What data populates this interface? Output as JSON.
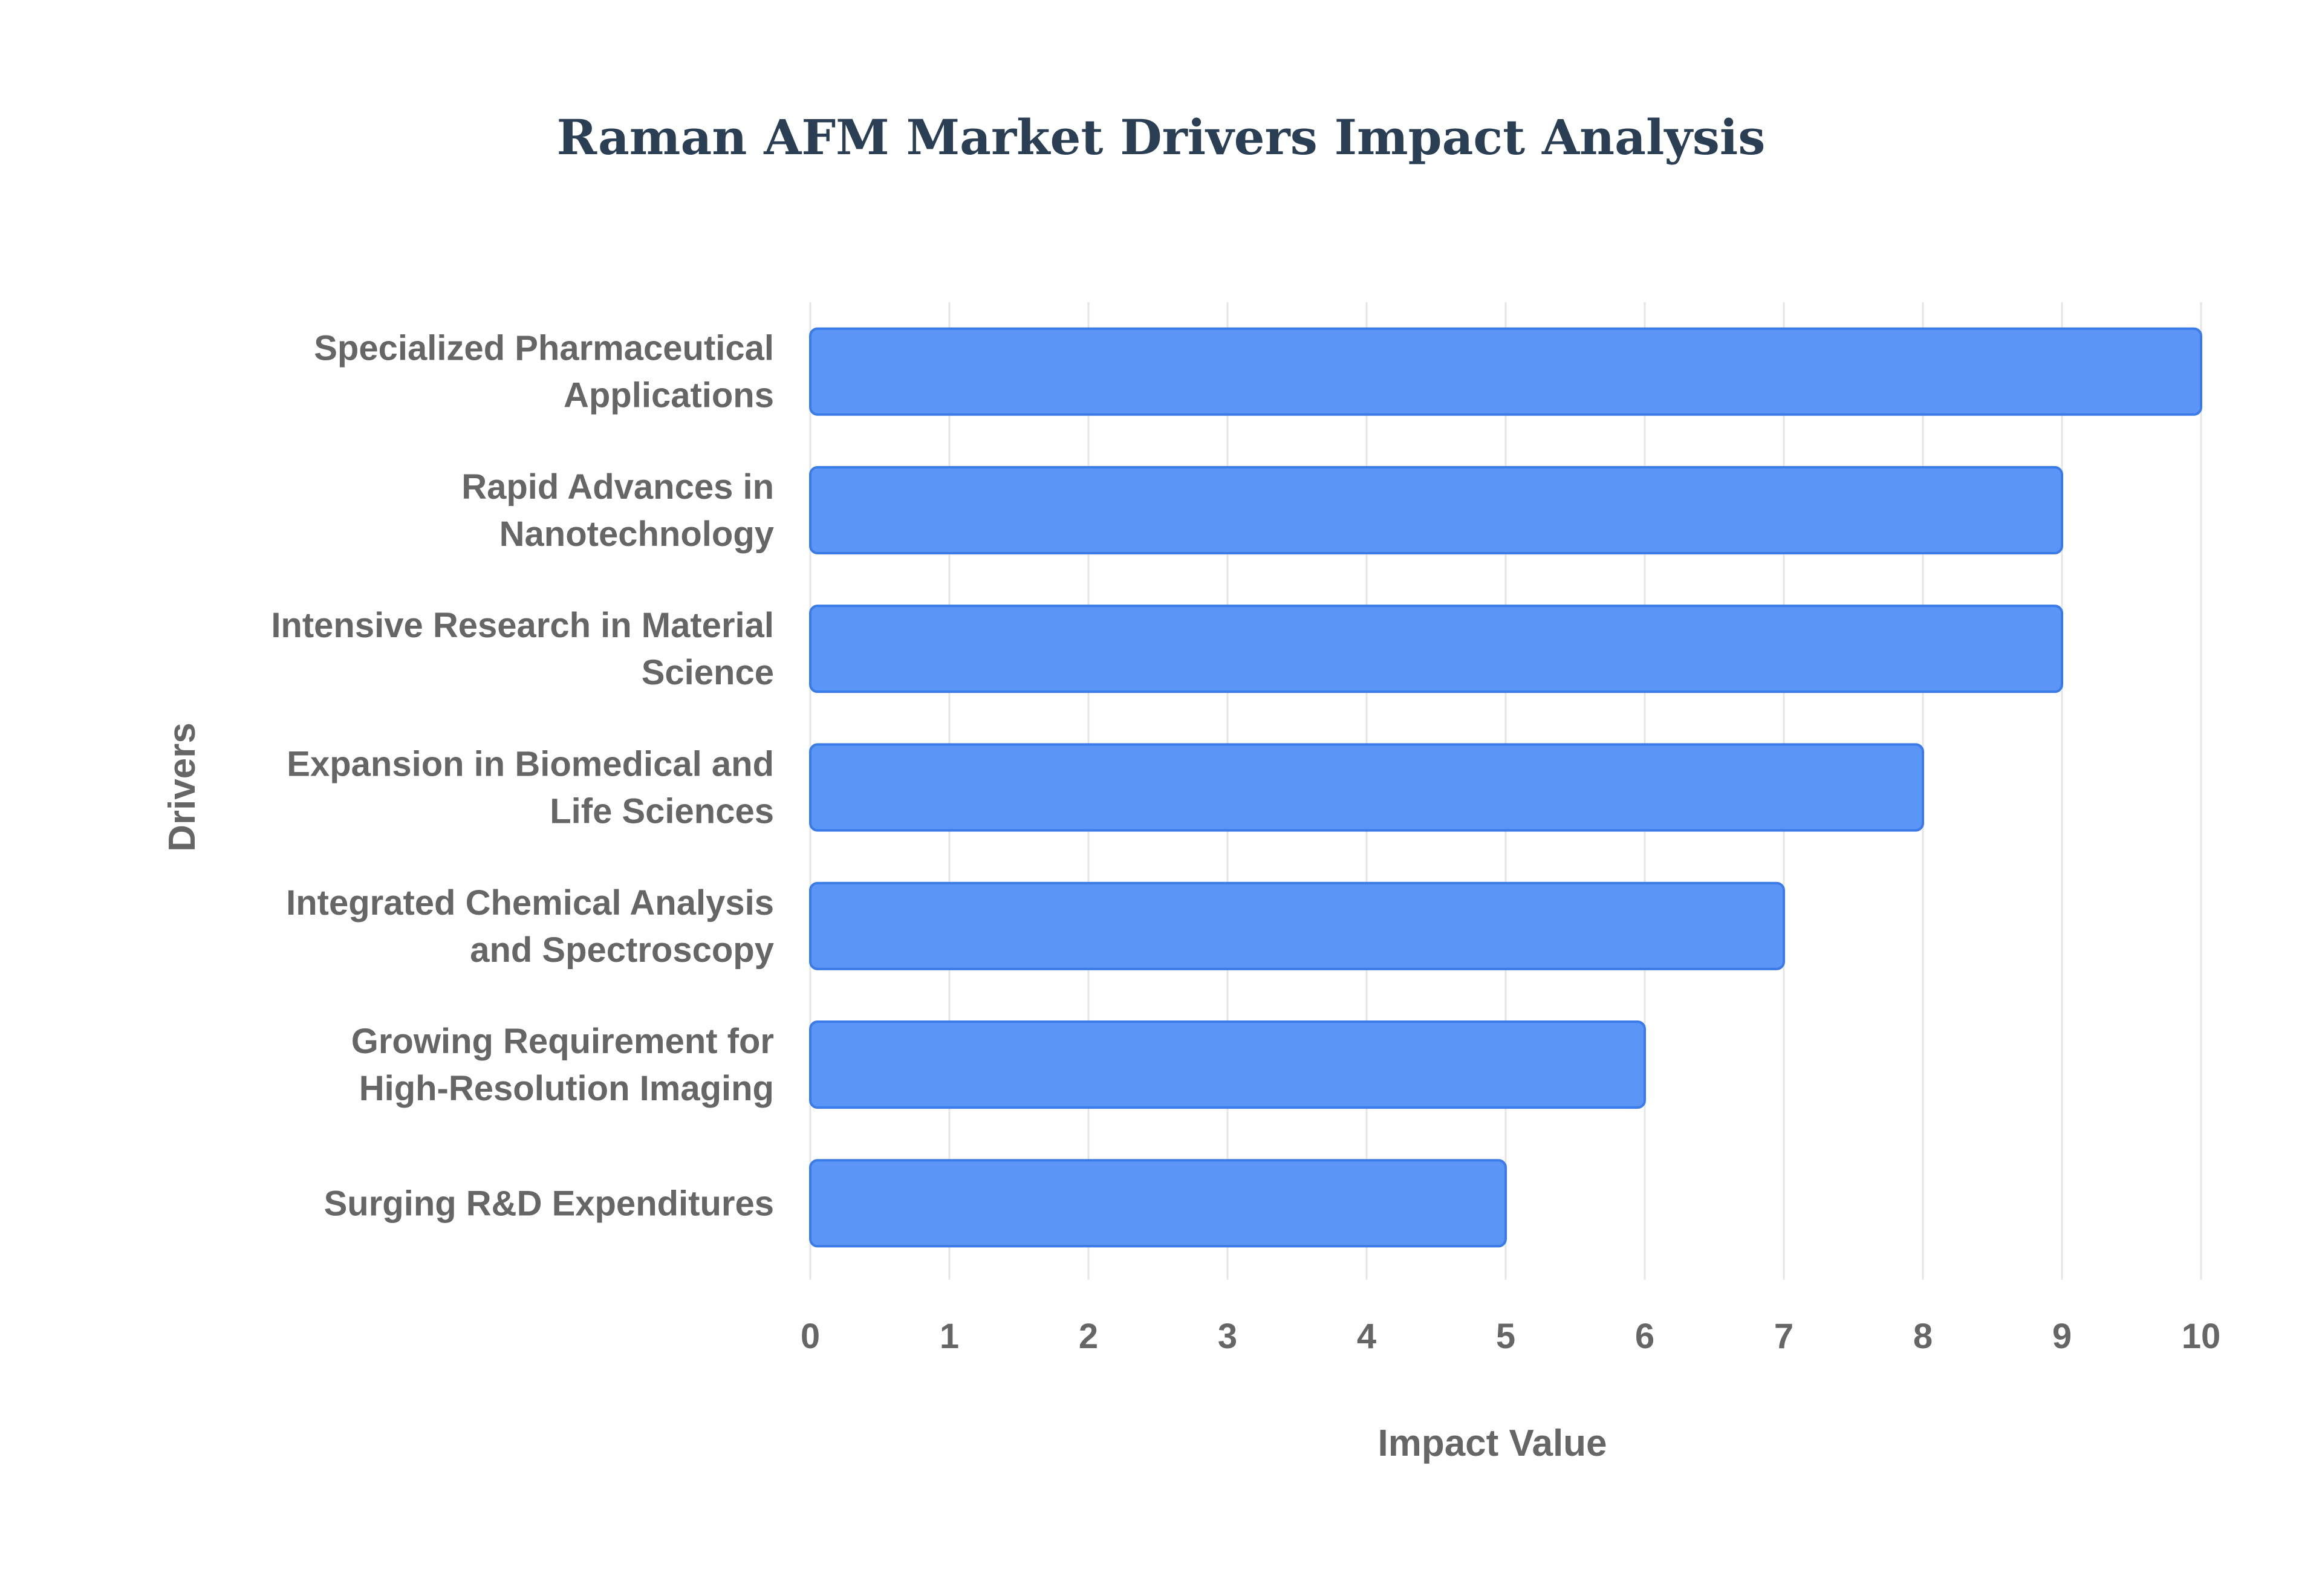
{
  "chart_data": {
    "type": "bar",
    "orientation": "horizontal",
    "title": "Raman AFM Market Drivers Impact Analysis",
    "xlabel": "Impact Value",
    "ylabel": "Drivers",
    "xlim": [
      0,
      10
    ],
    "xticks": [
      "0",
      "1",
      "2",
      "3",
      "4",
      "5",
      "6",
      "7",
      "8",
      "9",
      "10"
    ],
    "grid": true,
    "legend": "none",
    "categories": [
      {
        "lines": [
          "Specialized Pharmaceutical",
          "Applications"
        ]
      },
      {
        "lines": [
          "Rapid Advances in",
          "Nanotechnology"
        ]
      },
      {
        "lines": [
          "Intensive Research in Material",
          "Science"
        ]
      },
      {
        "lines": [
          "Expansion in Biomedical and",
          "Life Sciences"
        ]
      },
      {
        "lines": [
          "Integrated Chemical Analysis",
          "and Spectroscopy"
        ]
      },
      {
        "lines": [
          "Growing Requirement for",
          "High-Resolution Imaging"
        ]
      },
      {
        "lines": [
          "Surging R&D Expenditures"
        ]
      }
    ],
    "values": [
      10,
      9,
      9,
      8,
      7,
      6,
      5
    ],
    "colors": {
      "bar_fill": "#5b95f5",
      "bar_stroke": "#3a7be8",
      "grid": "#e6e6e6",
      "text": "#666666",
      "title": "#2a3f54"
    }
  }
}
